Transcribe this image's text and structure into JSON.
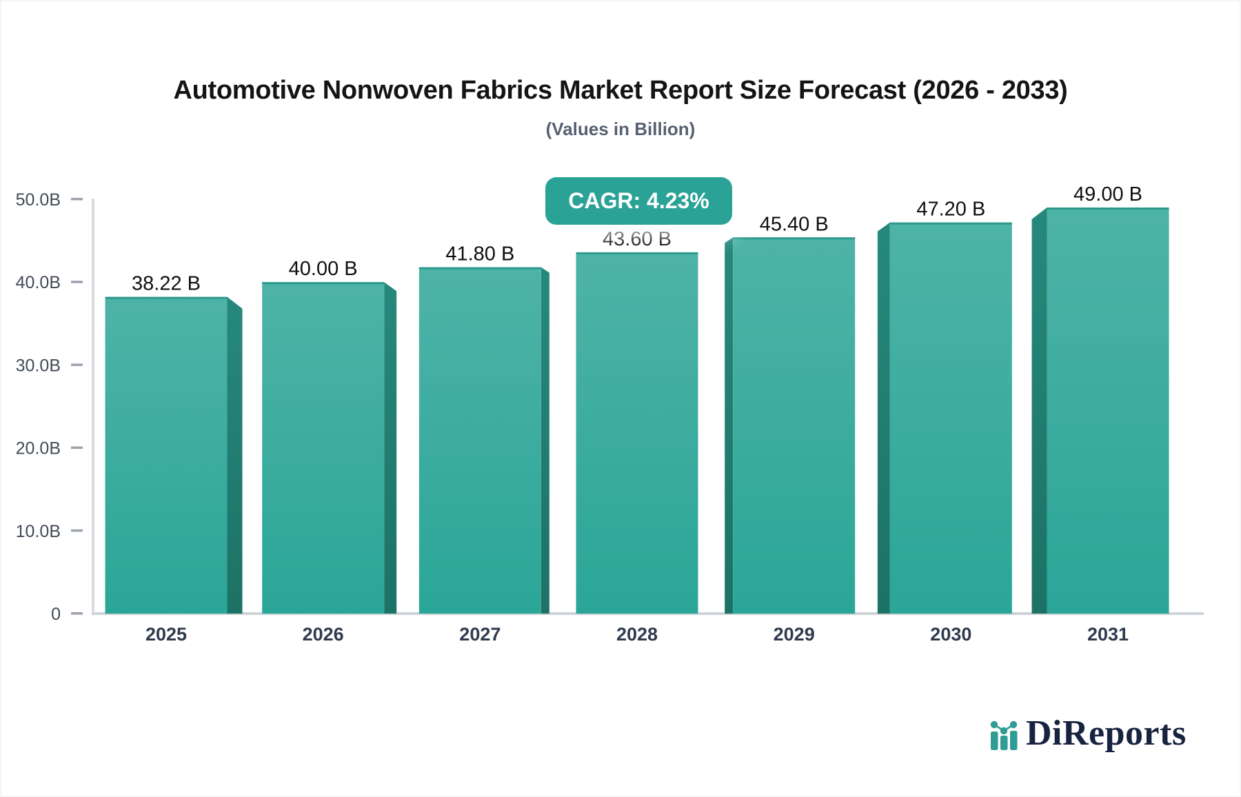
{
  "chart_data": {
    "type": "bar",
    "title": "Automotive Nonwoven Fabrics Market Report Size Forecast (2026 - 2033)",
    "subtitle": "(Values in Billion)",
    "cagr_label": "CAGR: 4.23%",
    "categories": [
      "2025",
      "2026",
      "2027",
      "2028",
      "2029",
      "2030",
      "2031"
    ],
    "values": [
      38.22,
      40.0,
      41.8,
      43.6,
      45.4,
      47.2,
      49.0
    ],
    "bar_labels": [
      "38.22 B",
      "40.00 B",
      "41.80 B",
      "43.60 B",
      "45.40 B",
      "47.20 B",
      "49.00 B"
    ],
    "y_ticks": [
      {
        "value": 0,
        "label": "0"
      },
      {
        "value": 10,
        "label": "10.0B"
      },
      {
        "value": 20,
        "label": "20.0B"
      },
      {
        "value": 30,
        "label": "30.0B"
      },
      {
        "value": 40,
        "label": "40.0B"
      },
      {
        "value": 50,
        "label": "50.0B"
      }
    ],
    "ylim": [
      0,
      50
    ],
    "grid": false,
    "legend": false,
    "colors": {
      "face_top": "#4fb3a7",
      "face_bottom": "#2aa698",
      "side_top": "#26897c",
      "side_bottom": "#1c7265",
      "bar_edge": "#2d9a8d",
      "axis_line": "#d8dbe0",
      "baseline": "#ced3d9",
      "tick_dash": "#9aa2ac",
      "tick_label": "#414a57",
      "year_label": "#2f3a4d",
      "value_label": "#0e0f11",
      "badge": "#2aa396"
    }
  },
  "logo": {
    "text": "DiReports",
    "navy": "#17233f",
    "teal": "#2f9d93"
  }
}
